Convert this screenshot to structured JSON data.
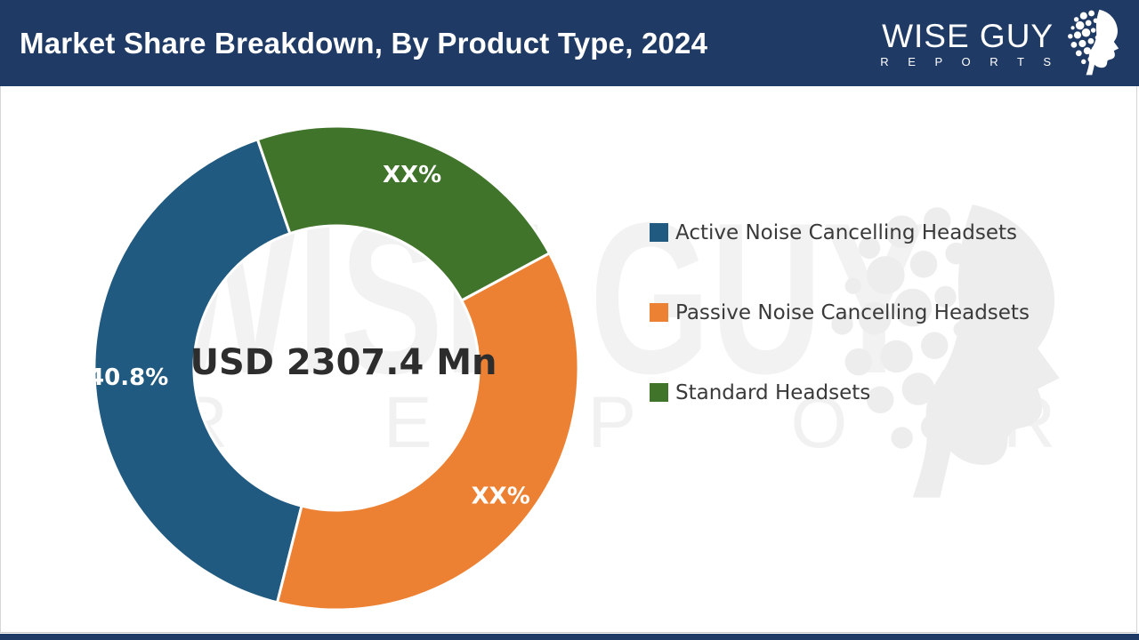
{
  "header": {
    "title": "Market Share Breakdown, By Product Type, 2024",
    "bg_color": "#1f3a64",
    "logo": {
      "brand": "WISE GUY",
      "sub": "R E P O R T S"
    }
  },
  "watermark": {
    "line1": "WISE GUY",
    "line2": "R E P O R T S"
  },
  "chart_data": {
    "type": "pie",
    "subtype": "donut",
    "title": "Market Share Breakdown, By Product Type, 2024",
    "center_label": "USD 2307.4 Mn",
    "start_angle_deg": 109,
    "direction": "counterclockwise",
    "legend_position": "right",
    "segments": [
      {
        "name": "Active Noise Cancelling Headsets",
        "display_label": "40.8%",
        "value_pct": 40.8,
        "color": "#205a80"
      },
      {
        "name": "Passive Noise Cancelling Headsets",
        "display_label": "XX%",
        "value_pct": 36.8,
        "color": "#ed8133"
      },
      {
        "name": "Standard Headsets",
        "display_label": "XX%",
        "value_pct": 22.4,
        "color": "#40742a"
      }
    ]
  }
}
